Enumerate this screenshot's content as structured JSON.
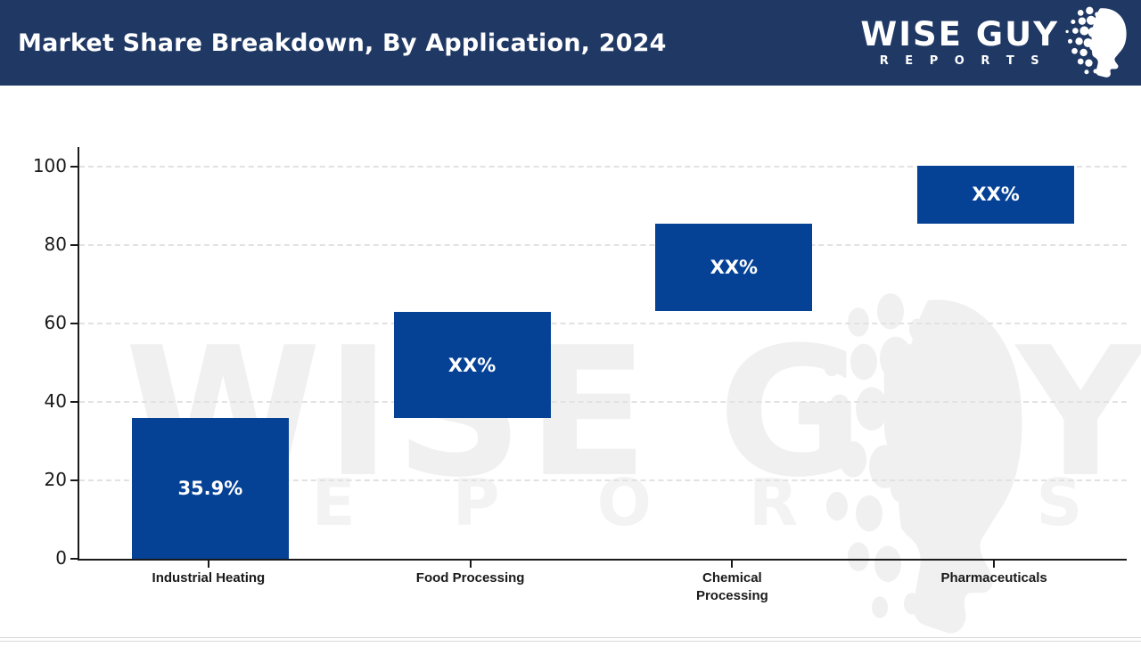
{
  "header": {
    "title": "Market Share Breakdown, By Application, 2024",
    "logo_line1": "WISE GUY",
    "logo_line2": "R E P O R T S"
  },
  "watermark": {
    "line1": "WISE GUY",
    "line2": "R E P O R T S"
  },
  "colors": {
    "header_bg": "#1F3864",
    "bar": "#054296",
    "bar_label": "#FFFFFF",
    "axis": "#1A1A1A",
    "grid": "#E2E2E2",
    "watermark": "#F0F0F0"
  },
  "chart_data": {
    "type": "bar",
    "variant": "floating-segment (waterfall-style market share)",
    "title": "Market Share Breakdown, By Application, 2024",
    "categories": [
      "Industrial Heating",
      "Food Processing",
      "Chemical Processing",
      "Pharmaceuticals"
    ],
    "segments": [
      {
        "category": "Industrial Heating",
        "start": 0,
        "end": 35.9,
        "label": "35.9%"
      },
      {
        "category": "Food Processing",
        "start": 35.9,
        "end": 62.9,
        "label": "XX%"
      },
      {
        "category": "Chemical Processing",
        "start": 63.2,
        "end": 85.4,
        "label": "XX%"
      },
      {
        "category": "Pharmaceuticals",
        "start": 85.5,
        "end": 100.2,
        "label": "XX%"
      }
    ],
    "y_ticks": [
      0,
      20,
      40,
      60,
      80,
      100
    ],
    "ylim": [
      0,
      105
    ],
    "xlabel": "",
    "ylabel": "",
    "grid": "horizontal-dashed",
    "legend": "none"
  }
}
